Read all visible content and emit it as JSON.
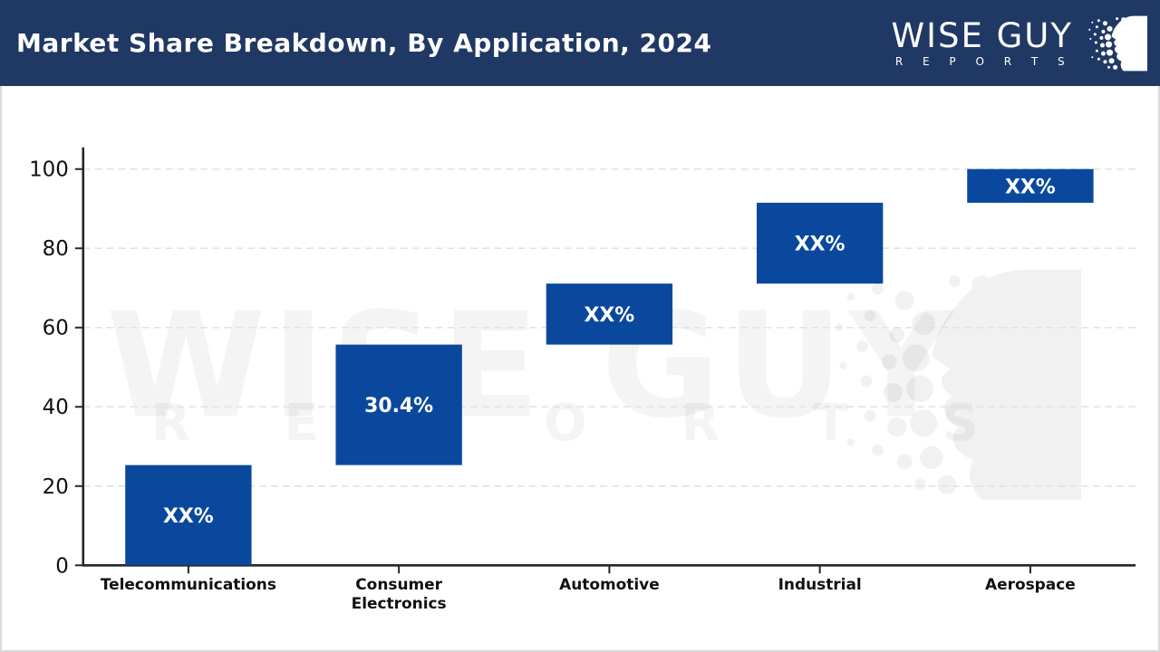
{
  "header": {
    "title": "Market Share Breakdown, By Application, 2024",
    "bg_color": "#203864",
    "logo": {
      "line1": "WISE GUY",
      "line2": "R E P O R T S"
    }
  },
  "watermark": {
    "line1": "WISE GUY",
    "line2": "R E P O R T S"
  },
  "chart_data": {
    "type": "bar",
    "subtype": "floating-waterfall-bars",
    "title": "Market Share Breakdown, By Application, 2024",
    "categories": [
      "Telecommunications",
      "Consumer Electronics",
      "Automotive",
      "Industrial",
      "Aerospace"
    ],
    "segments": [
      {
        "category": "Telecommunications",
        "category_lines": [
          "Telecommunications"
        ],
        "start": 0,
        "end": 25.3,
        "label": "XX%"
      },
      {
        "category": "Consumer Electronics",
        "category_lines": [
          "Consumer",
          "Electronics"
        ],
        "start": 25.3,
        "end": 55.7,
        "label": "30.4%"
      },
      {
        "category": "Automotive",
        "category_lines": [
          "Automotive"
        ],
        "start": 55.7,
        "end": 71.1,
        "label": "XX%"
      },
      {
        "category": "Industrial",
        "category_lines": [
          "Industrial"
        ],
        "start": 71.1,
        "end": 91.5,
        "label": "XX%"
      },
      {
        "category": "Aerospace",
        "category_lines": [
          "Aerospace"
        ],
        "start": 91.5,
        "end": 100,
        "label": "XX%"
      }
    ],
    "ylim": [
      0,
      100
    ],
    "yticks": [
      0,
      20,
      40,
      60,
      80,
      100
    ],
    "xlabel": "",
    "ylabel": "",
    "grid": "horizontal-dashed",
    "legend": "none",
    "bar_color": "#0a489e",
    "bar_label_color": "#ffffff",
    "axis_color": "#262626"
  }
}
